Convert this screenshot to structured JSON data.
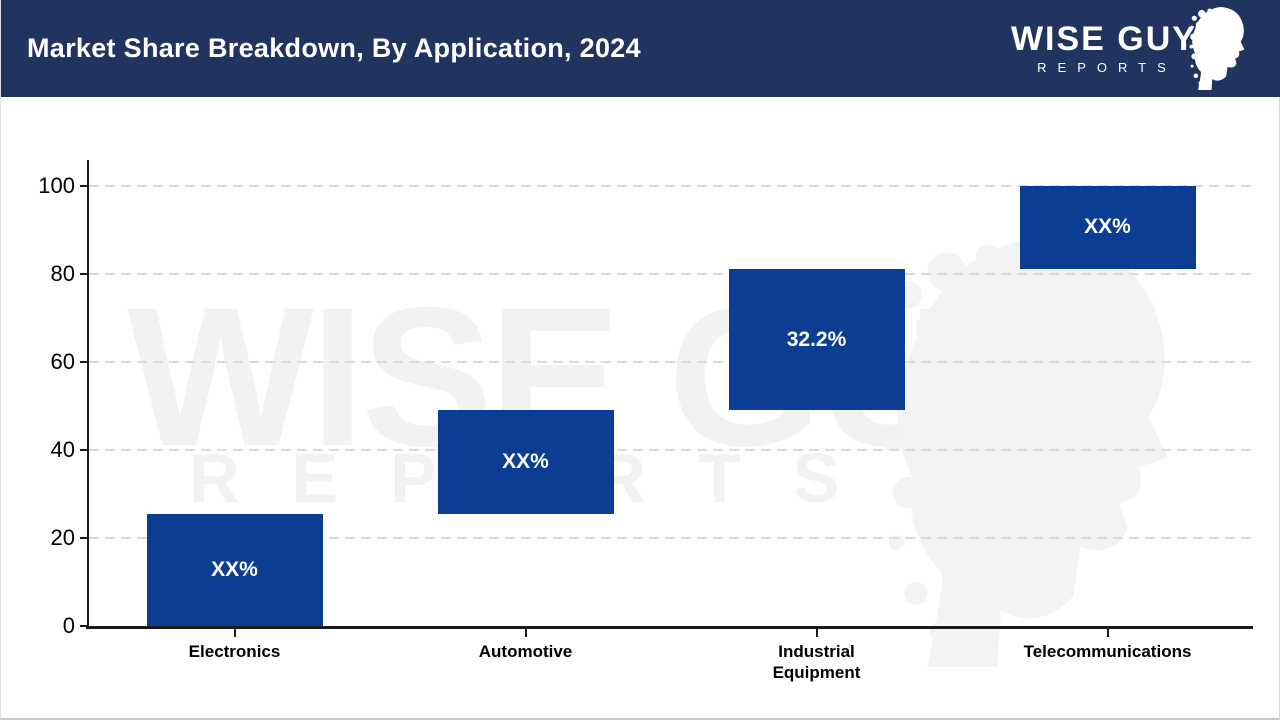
{
  "header": {
    "title": "Market Share Breakdown, By Application, 2024",
    "logo": {
      "line1": "WISE GUY",
      "line2": "REPORTS"
    }
  },
  "watermark": {
    "line1": "WISE GUY",
    "line2": "REPORTS"
  },
  "chart_data": {
    "type": "bar",
    "subtype": "floating-waterfall",
    "title": "Market Share Breakdown, By Application, 2024",
    "categories": [
      "Electronics",
      "Automotive",
      "Industrial\nEquipment",
      "Telecommunications"
    ],
    "values": [
      25.5,
      23.5,
      32.2,
      18.8
    ],
    "bar_bottoms": [
      0,
      25.5,
      49.0,
      81.2
    ],
    "bar_tops": [
      25.5,
      49.0,
      81.2,
      100
    ],
    "bar_labels": [
      "XX%",
      "XX%",
      "32.2%",
      "XX%"
    ],
    "yticks": [
      0,
      20,
      40,
      60,
      80,
      100
    ],
    "ylim": [
      0,
      100
    ],
    "xlabel": "",
    "ylabel": "",
    "grid": "horizontal-dashed",
    "legend": "none",
    "bar_color": "#0b3e92",
    "bar_label_color": "#ffffff",
    "header_color": "#20345f"
  }
}
